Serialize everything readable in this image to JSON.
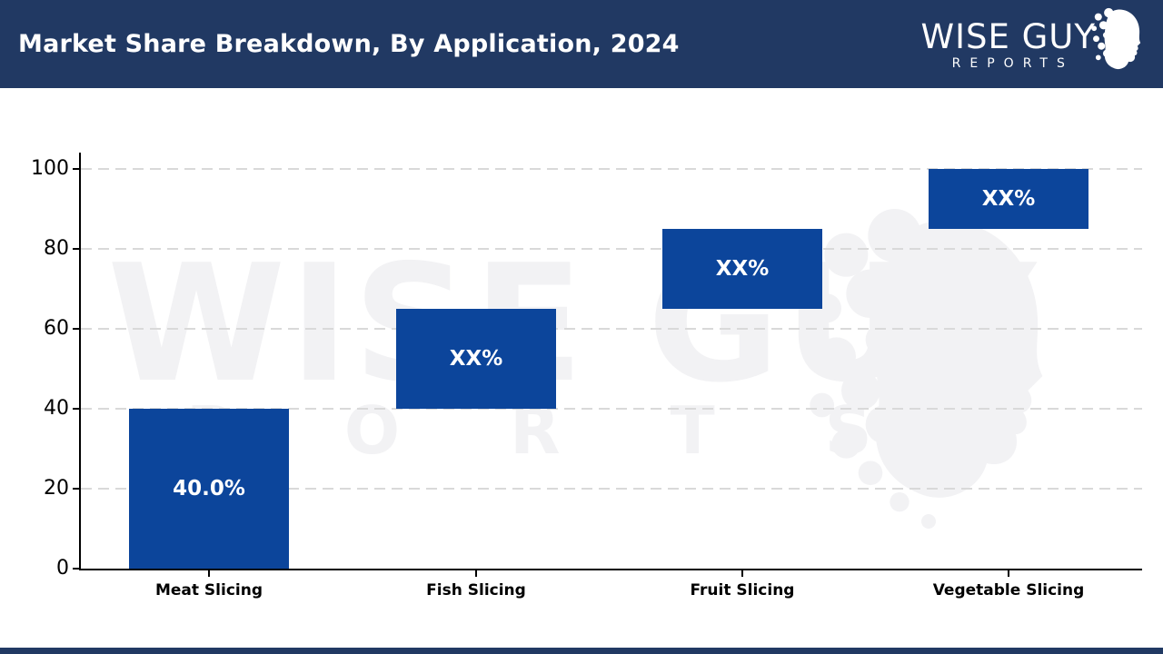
{
  "header": {
    "title": "Market Share Breakdown, By Application, 2024",
    "logo": {
      "wordmark": "WISE GUY",
      "subtext": "REPORTS",
      "head_icon": "dotted-face-profile"
    }
  },
  "watermark": {
    "wordmark": "WISE GUY",
    "reports": "P O R T S",
    "head_icon": "dotted-face-profile"
  },
  "colors": {
    "header_bg": "#213963",
    "footer_bg": "#213963",
    "bar": "#0c459b",
    "bar_label": "#ffffff",
    "gridline": "#d9d9d9",
    "axis": "#000000",
    "watermark": "#f2f2f4",
    "background": "#ffffff"
  },
  "chart_data": {
    "type": "bar",
    "subtype": "floating-waterfall",
    "title": "Market Share Breakdown, By Application, 2024",
    "categories": [
      "Meat Slicing",
      "Fish Slicing",
      "Fruit Slicing",
      "Vegetable Slicing"
    ],
    "series": [
      {
        "name": "Market Share",
        "segments": [
          {
            "category": "Meat Slicing",
            "start": 0,
            "end": 40,
            "label": "40.0%"
          },
          {
            "category": "Fish Slicing",
            "start": 40,
            "end": 65,
            "label": "XX%"
          },
          {
            "category": "Fruit Slicing",
            "start": 65,
            "end": 85,
            "label": "XX%"
          },
          {
            "category": "Vegetable Slicing",
            "start": 85,
            "end": 100,
            "label": "XX%"
          }
        ]
      }
    ],
    "xlabel": "",
    "ylabel": "",
    "ylim": [
      0,
      104
    ],
    "yticks": [
      "0",
      "20",
      "40",
      "60",
      "80",
      "100"
    ],
    "grid": "horizontal-dashed",
    "legend": "none"
  }
}
